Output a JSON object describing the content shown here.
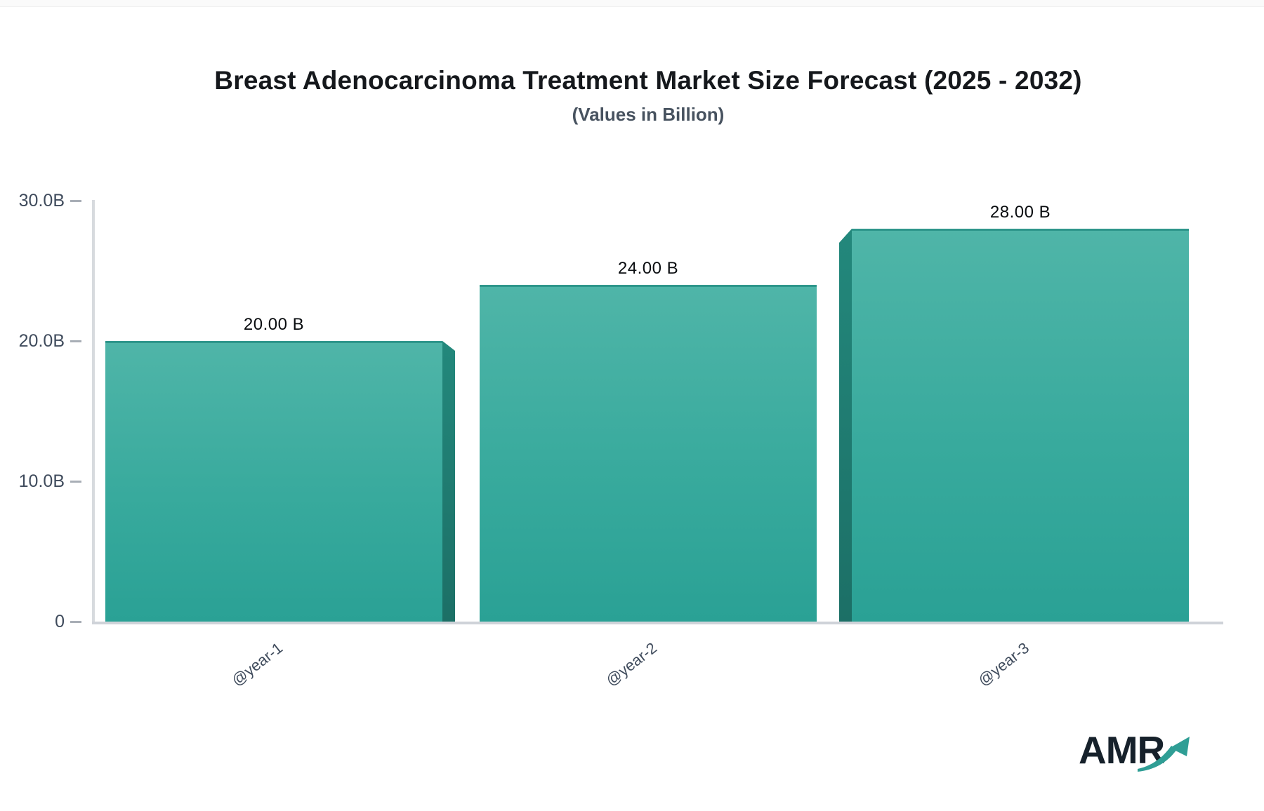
{
  "header": {
    "title": "Breast Adenocarcinoma Treatment Market Size Forecast (2025 - 2032)",
    "subtitle": "(Values in Billion)"
  },
  "chart_data": {
    "type": "bar",
    "title": "Breast Adenocarcinoma Treatment Market Size Forecast (2025 - 2032)",
    "subtitle": "(Values in Billion)",
    "categories": [
      "@year-1",
      "@year-2",
      "@year-3"
    ],
    "values": [
      20,
      24,
      28
    ],
    "value_labels": [
      "20.00 B",
      "24.00 B",
      "28.00 B"
    ],
    "y_ticks": [
      {
        "label": "30.0B",
        "value": 30
      },
      {
        "label": "20.0B",
        "value": 20
      },
      {
        "label": "10.0B",
        "value": 10
      },
      {
        "label": "0",
        "value": 0
      }
    ],
    "ylim": [
      0,
      30
    ],
    "xlabel": "",
    "ylabel": "",
    "grid": false,
    "legend": false,
    "colors": {
      "bar_top": "#4fb5a8",
      "bar_bottom": "#2aa195",
      "bar_top_edge": "#2e968b",
      "bar_side_face": "#1f7b70",
      "axis_line": "#d2d6db",
      "tick_dash": "#a8aeb6",
      "tick_label": "#3f4b5c",
      "value_label": "#0a0d10"
    }
  },
  "logo": {
    "text": "AMR",
    "arrow_icon_color": "#2f9e95"
  }
}
